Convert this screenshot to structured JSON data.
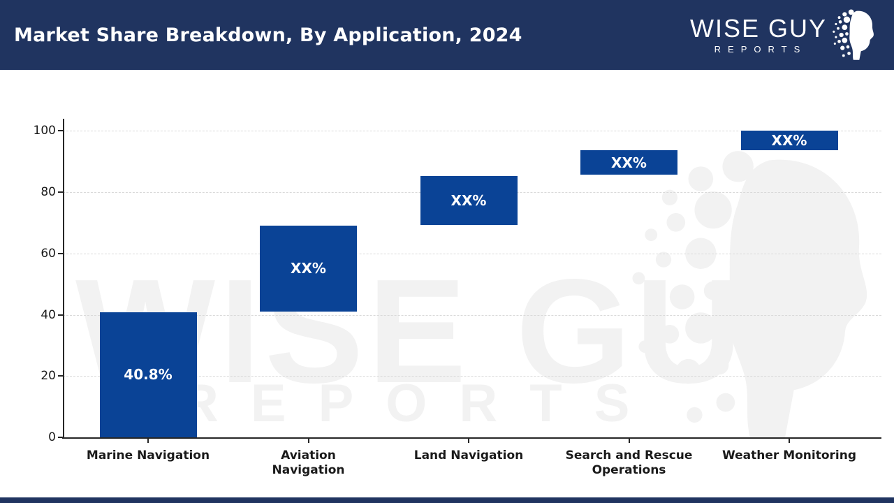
{
  "header": {
    "title": "Market Share Breakdown, By Application, 2024",
    "bg_color": "#203460",
    "logo": {
      "line1": "WISE GUY",
      "line2": "REPORTS"
    }
  },
  "watermark": {
    "line1": "WISE GUY",
    "line2": "REPORTS"
  },
  "footer": {
    "bg_color": "#203460"
  },
  "chart_data": {
    "type": "bar",
    "subtype": "waterfall",
    "title": "Market Share Breakdown, By Application, 2024",
    "bar_color": "#0A4396",
    "value_label_color": "#ffffff",
    "grid": "horizontal dashed",
    "ylim": [
      0,
      104
    ],
    "y_ticks": [
      0,
      20,
      40,
      60,
      80,
      100
    ],
    "categories": [
      "Marine Navigation",
      "Aviation Navigation",
      "Land Navigation",
      "Search and Rescue Operations",
      "Weather Monitoring"
    ],
    "segments": [
      {
        "category": "Marine Navigation",
        "label_lines": [
          "Marine Navigation"
        ],
        "start": 0,
        "end": 40.8,
        "value_label": "40.8%"
      },
      {
        "category": "Aviation Navigation",
        "label_lines": [
          "Aviation",
          "Navigation"
        ],
        "start": 41,
        "end": 69.1,
        "value_label": "XX%"
      },
      {
        "category": "Land Navigation",
        "label_lines": [
          "Land Navigation"
        ],
        "start": 69.2,
        "end": 85.2,
        "value_label": "XX%"
      },
      {
        "category": "Search and Rescue Operations",
        "label_lines": [
          "Search and Rescue",
          "Operations"
        ],
        "start": 85.6,
        "end": 93.7,
        "value_label": "XX%"
      },
      {
        "category": "Weather Monitoring",
        "label_lines": [
          "Weather Monitoring"
        ],
        "start": 93.7,
        "end": 100,
        "value_label": "XX%"
      }
    ]
  }
}
